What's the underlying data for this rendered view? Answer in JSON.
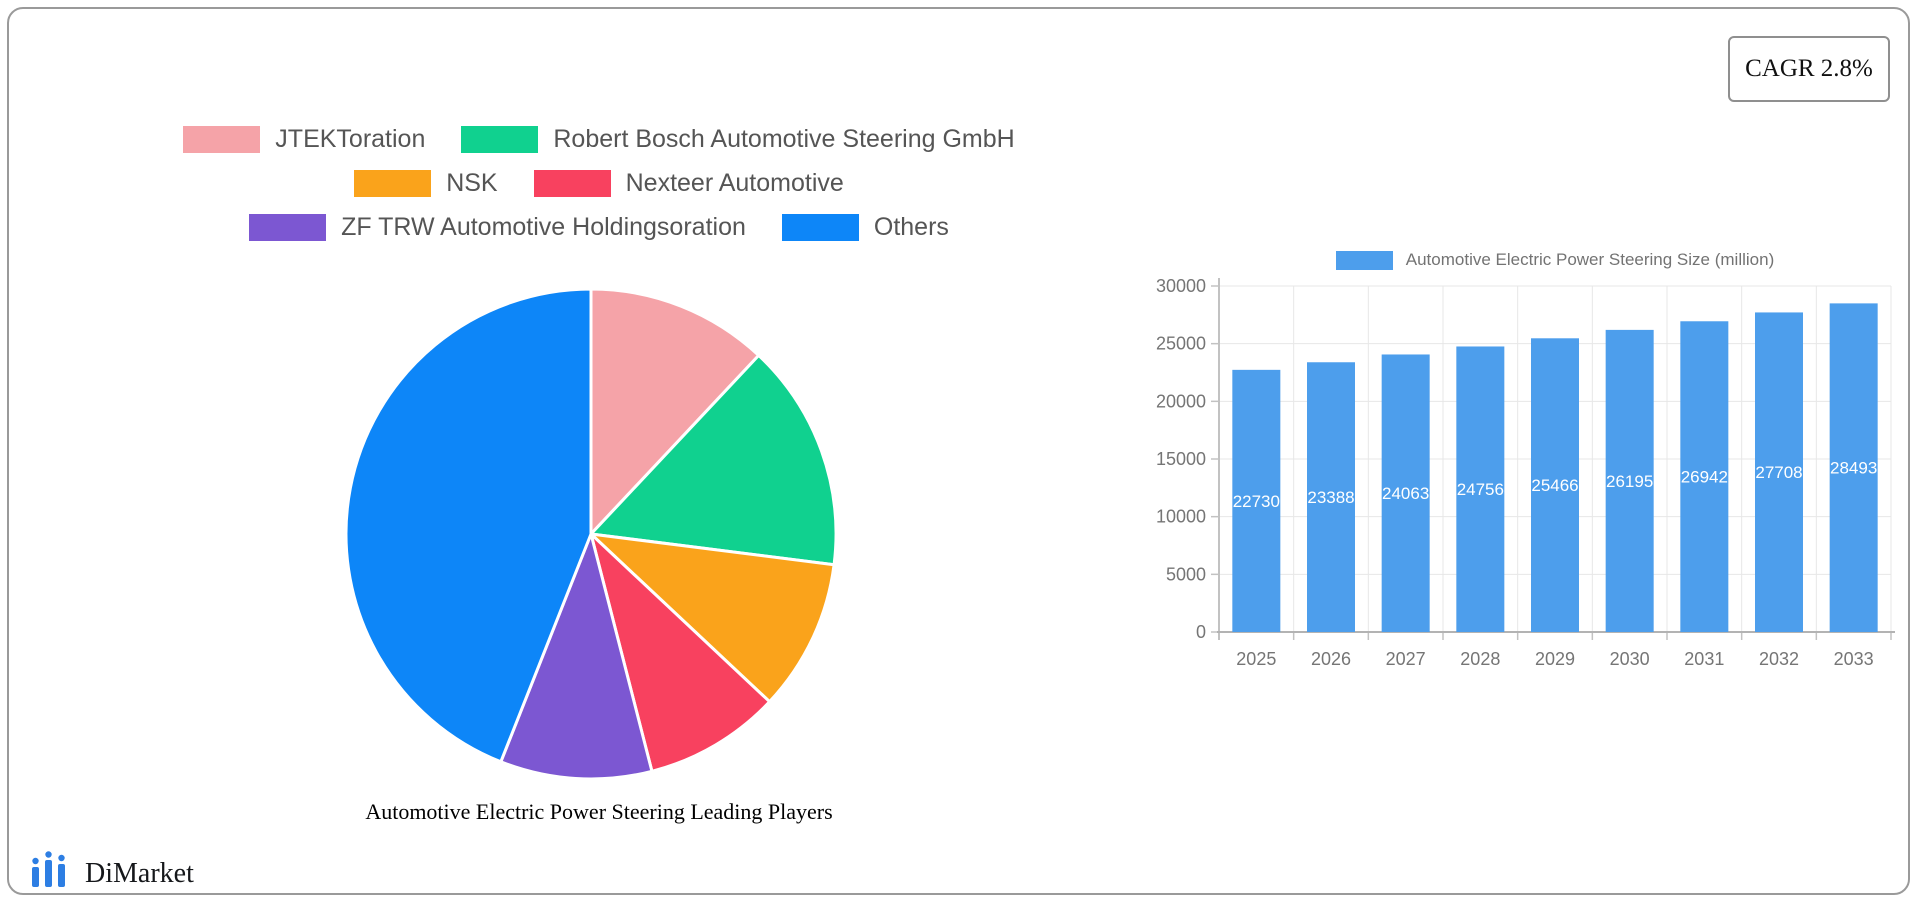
{
  "cagr_badge": {
    "label": "CAGR 2.8%"
  },
  "branding": {
    "name": "DiMarket",
    "logo_color": "#2d7ee3"
  },
  "chart_data": [
    {
      "type": "pie",
      "title": "Automotive Electric Power Steering Leading Players",
      "labels": [
        "JTEKToration",
        "Robert Bosch Automotive Steering GmbH",
        "NSK",
        "Nexteer Automotive",
        "ZF TRW Automotive Holdingsoration",
        "Others"
      ],
      "values": [
        12,
        15,
        10,
        9,
        10,
        44
      ],
      "colors": [
        "#f5a3a8",
        "#10d18f",
        "#faa31b",
        "#f8415f",
        "#7c57d2",
        "#0d86f8"
      ],
      "legend_rows": [
        [
          0,
          1
        ],
        [
          2,
          3
        ],
        [
          4,
          5
        ]
      ],
      "legend_position": "top",
      "start_angle": "12-oclock",
      "direction": "clockwise",
      "slice_border_color": "#ffffff"
    },
    {
      "type": "bar",
      "legend": "Automotive Electric Power Steering Size (million)",
      "categories": [
        "2025",
        "2026",
        "2027",
        "2028",
        "2029",
        "2030",
        "2031",
        "2032",
        "2033"
      ],
      "values": [
        22730,
        23388,
        24063,
        24756,
        25466,
        26195,
        26942,
        27708,
        28493
      ],
      "bar_color": "#4d9eec",
      "value_label_color": "#ffffff",
      "axis_label_color": "#757575",
      "ylim": [
        0,
        30000
      ],
      "yticks": [
        0,
        5000,
        10000,
        15000,
        20000,
        25000,
        30000
      ],
      "grid": true,
      "legend_position": "top"
    }
  ]
}
